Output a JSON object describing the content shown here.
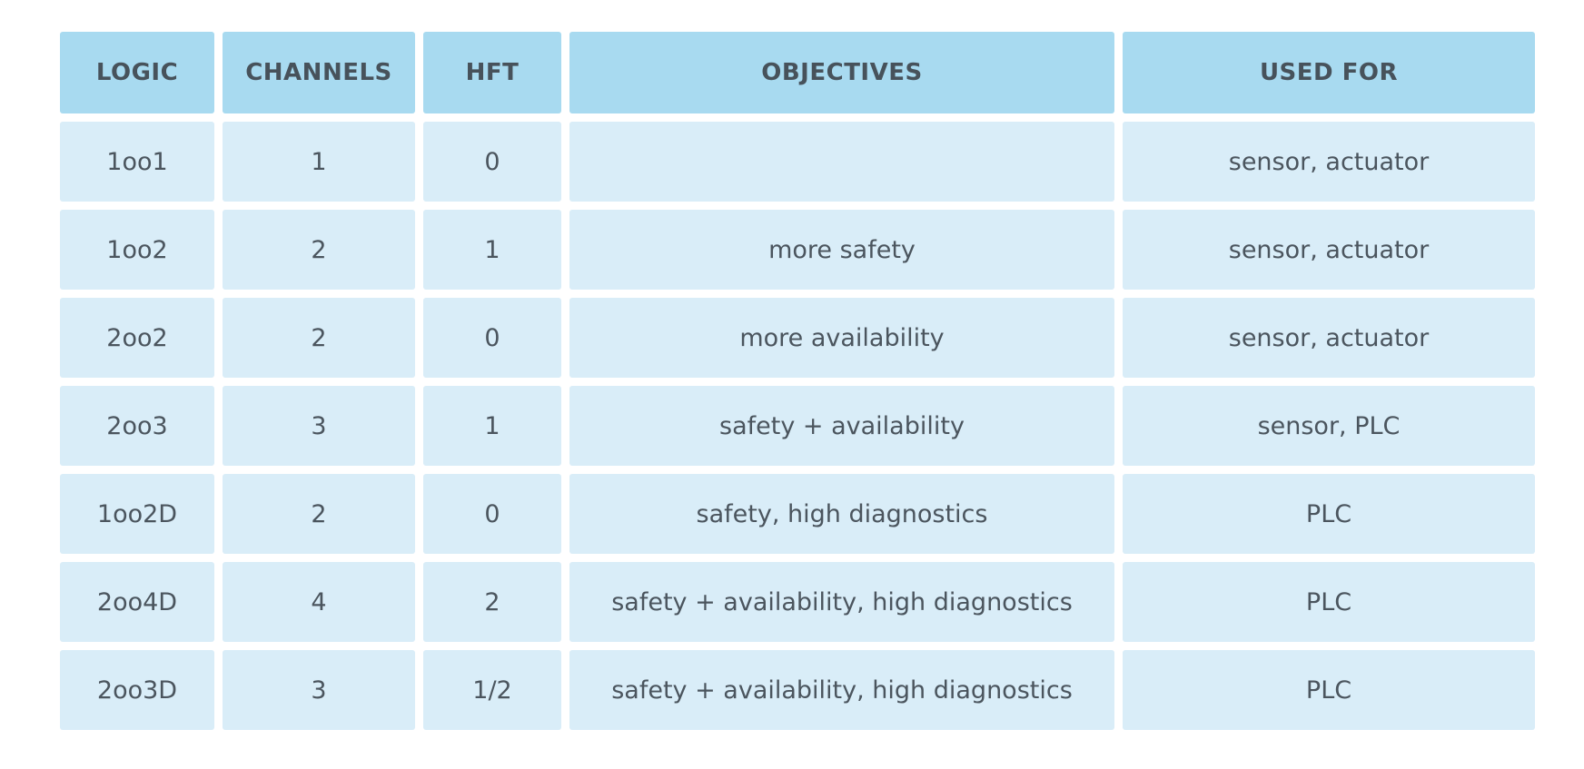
{
  "colors": {
    "page_bg": "#ffffff",
    "header_cell_bg": "#a8daf0",
    "body_cell_bg": "#d9edf8",
    "text": "#4b555e"
  },
  "chart_data": {
    "type": "table",
    "title": "",
    "columns": [
      "LOGIC",
      "CHANNELS",
      "HFT",
      "OBJECTIVES",
      "USED FOR"
    ],
    "rows": [
      [
        "1oo1",
        "1",
        "0",
        "",
        "sensor, actuator"
      ],
      [
        "1oo2",
        "2",
        "1",
        "more safety",
        "sensor, actuator"
      ],
      [
        "2oo2",
        "2",
        "0",
        "more availability",
        "sensor, actuator"
      ],
      [
        "2oo3",
        "3",
        "1",
        "safety + availability",
        "sensor, PLC"
      ],
      [
        "1oo2D",
        "2",
        "0",
        "safety, high diagnostics",
        "PLC"
      ],
      [
        "2oo4D",
        "4",
        "2",
        "safety + availability, high diagnostics",
        "PLC"
      ],
      [
        "2oo3D",
        "3",
        "1/2",
        "safety + availability, high diagnostics",
        "PLC"
      ]
    ]
  }
}
